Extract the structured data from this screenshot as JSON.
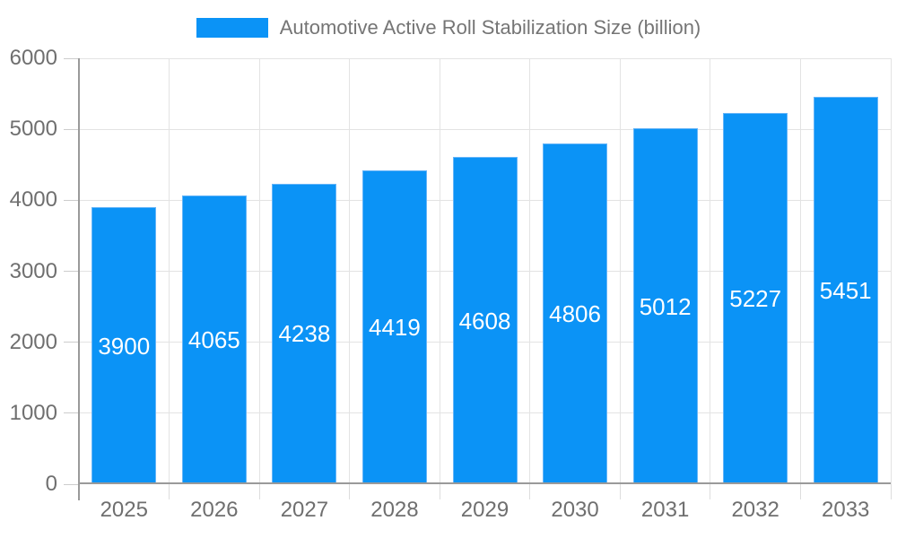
{
  "chart_data": {
    "type": "bar",
    "title": "Automotive Active Roll Stabilization Size (billion)",
    "series_name": "Automotive Active Roll Stabilization Size (billion)",
    "categories": [
      "2025",
      "2026",
      "2027",
      "2028",
      "2029",
      "2030",
      "2031",
      "2032",
      "2033"
    ],
    "values": [
      3900,
      4065,
      4238,
      4419,
      4608,
      4806,
      5012,
      5227,
      5451
    ],
    "xlabel": "",
    "ylabel": "",
    "ylim": [
      0,
      6000
    ],
    "yticks": [
      0,
      1000,
      2000,
      3000,
      4000,
      5000,
      6000
    ],
    "grid": true,
    "legend_position": "top",
    "value_labels_position": "inside-center",
    "colors": {
      "bar": "#0b93f6",
      "bar_border": "#66b5f8",
      "axis_line": "#9a9a9a",
      "gridline": "#e3e3e3",
      "y_tick": "#cccccc",
      "x_tick": "#dddddd",
      "axis_text": "#6f6f6f",
      "legend_text": "#757575",
      "value_text": "#ffffff",
      "background": "#ffffff"
    }
  }
}
